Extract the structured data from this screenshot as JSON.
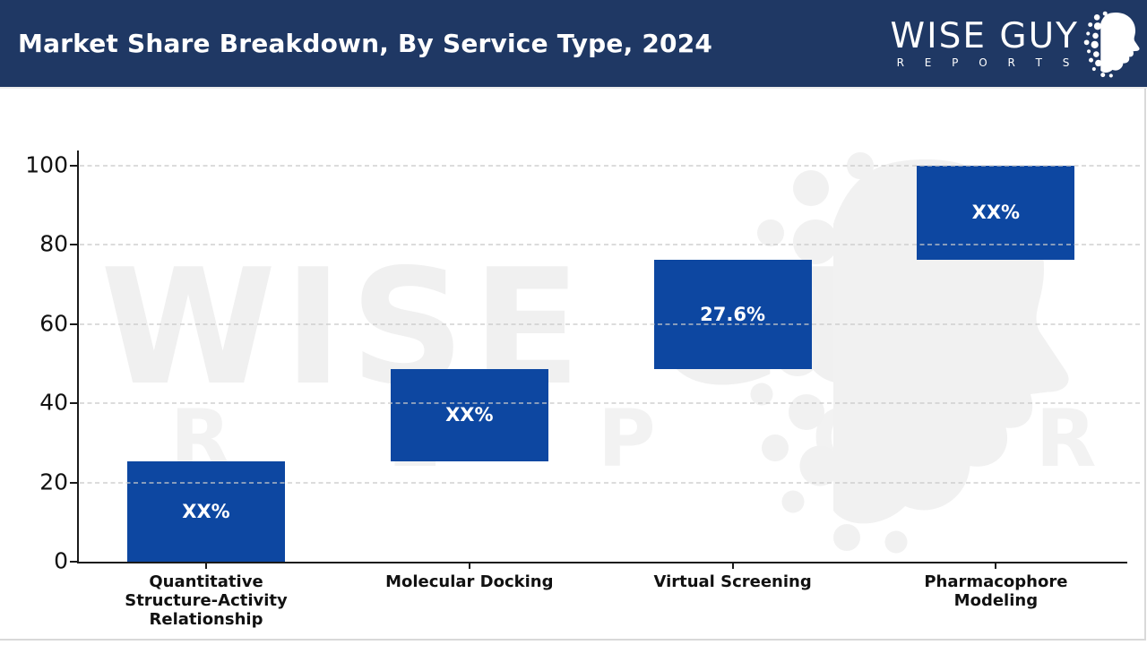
{
  "header": {
    "title": "Market Share Breakdown, By Service Type, 2024",
    "logo": {
      "name": "WISE GUY",
      "sub": "R E P O R T S"
    }
  },
  "watermark": {
    "name": "WISE GUY",
    "sub": "R E P O R T S"
  },
  "chart_data": {
    "type": "bar",
    "subtype": "floating-waterfall",
    "title": "Market Share Breakdown, By Service Type, 2024",
    "categories": [
      "Quantitative Structure-Activity Relationship",
      "Molecular Docking",
      "Virtual Screening",
      "Pharmacophore Modeling"
    ],
    "category_label_lines": [
      [
        "Quantitative",
        "Structure-Activity",
        "Relationship"
      ],
      [
        "Molecular Docking"
      ],
      [
        "Virtual Screening"
      ],
      [
        "Pharmacophore",
        "Modeling"
      ]
    ],
    "segments": [
      {
        "category": "Quantitative Structure-Activity Relationship",
        "start": 0,
        "end": 25.4,
        "label": "XX%"
      },
      {
        "category": "Molecular Docking",
        "start": 25.4,
        "end": 48.6,
        "label": "XX%"
      },
      {
        "category": "Virtual Screening",
        "start": 48.6,
        "end": 76.2,
        "label": "27.6%"
      },
      {
        "category": "Pharmacophore Modeling",
        "start": 76.2,
        "end": 100,
        "label": "XX%"
      }
    ],
    "ylim": [
      0,
      100
    ],
    "yticks": [
      0,
      20,
      40,
      60,
      80,
      100
    ],
    "xlabel": "",
    "ylabel": "",
    "grid": {
      "axis": "y",
      "style": "dashed",
      "drawn_over_bars": true
    },
    "legend": "none",
    "colors": {
      "bar": "#0d47a1",
      "bar_label": "#ffffff",
      "header_bg": "#1f3864",
      "axis": "#1a1a1a",
      "gridline": "#c9c9c9",
      "watermark": "#f0f0f0"
    }
  }
}
